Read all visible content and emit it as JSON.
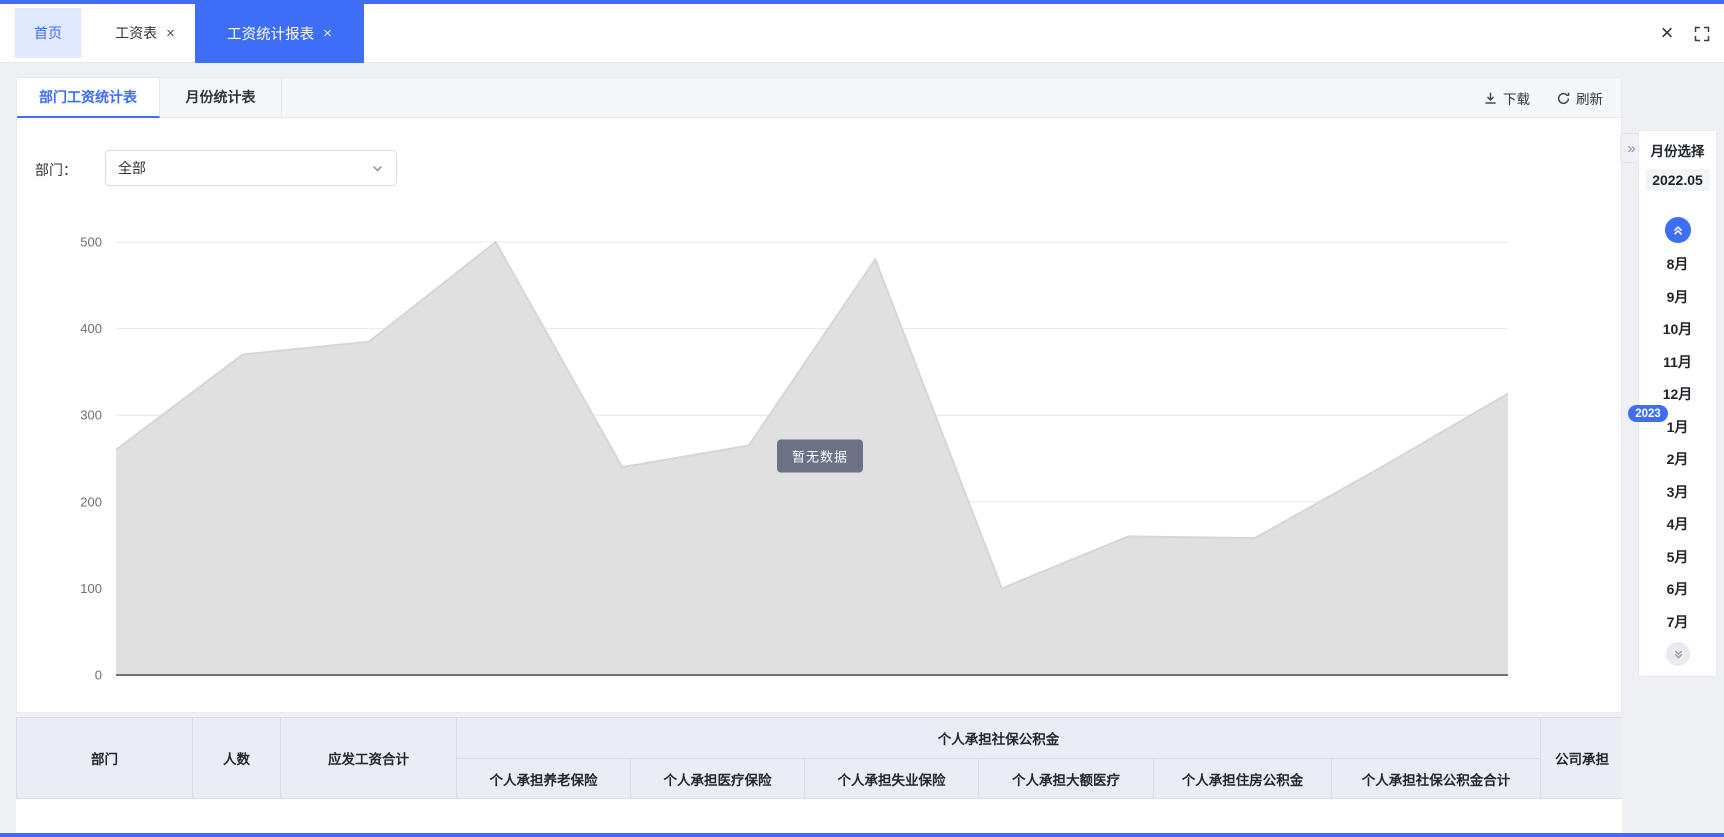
{
  "colors": {
    "accent": "#3d6ef5",
    "home_tab_bg": "#e1e9fd",
    "area_fill": "#e0e0e0",
    "empty_badge_bg": "#6b7186",
    "table_header_bg": "#ebedf5",
    "year_badge_bg": "#3d6ef5"
  },
  "window": {
    "close_icon": "×"
  },
  "close_glyph": "×",
  "top_tabs": [
    {
      "label": "首页",
      "active": false,
      "closable": false
    },
    {
      "label": "工资表",
      "active": false,
      "closable": true
    },
    {
      "label": "工资统计报表",
      "active": true,
      "closable": true
    }
  ],
  "sub_tabs": [
    {
      "label": "部门工资统计表",
      "active": true
    },
    {
      "label": "月份统计表",
      "active": false
    }
  ],
  "toolbar": {
    "download_label": "下载",
    "refresh_label": "刷新"
  },
  "filter": {
    "label": "部门：",
    "selected": "全部"
  },
  "chart_data": {
    "type": "area",
    "title": "",
    "xlabel": "",
    "ylabel": "",
    "x": [
      1,
      2,
      3,
      4,
      5,
      6,
      7,
      8,
      9,
      10,
      11,
      12
    ],
    "values": [
      260,
      370,
      385,
      500,
      240,
      265,
      480,
      100,
      160,
      158,
      240,
      325
    ],
    "yticks": [
      0,
      100,
      200,
      300,
      400,
      500
    ],
    "ylim": [
      0,
      500
    ],
    "grid": true,
    "legend": false,
    "area_color": "#e0e0e0",
    "empty_text": "暂无数据"
  },
  "month_panel": {
    "collapse_glyph": "»",
    "title": "月份选择",
    "selected_month": "2022.05",
    "year_badge": "2023",
    "year_badge_after_index": 4,
    "months": [
      "8月",
      "9月",
      "10月",
      "11月",
      "12月",
      "1月",
      "2月",
      "3月",
      "4月",
      "5月",
      "6月",
      "7月"
    ]
  },
  "table": {
    "dept": "部门",
    "headcount": "人数",
    "salary_total": "应发工资合计",
    "personal_group": "个人承担社保公积金",
    "personal_cols": [
      "个人承担养老保险",
      "个人承担医疗保险",
      "个人承担失业保险",
      "个人承担大额医疗",
      "个人承担住房公积金",
      "个人承担社保公积金合计"
    ],
    "company_col": "公司承担",
    "rows": []
  }
}
